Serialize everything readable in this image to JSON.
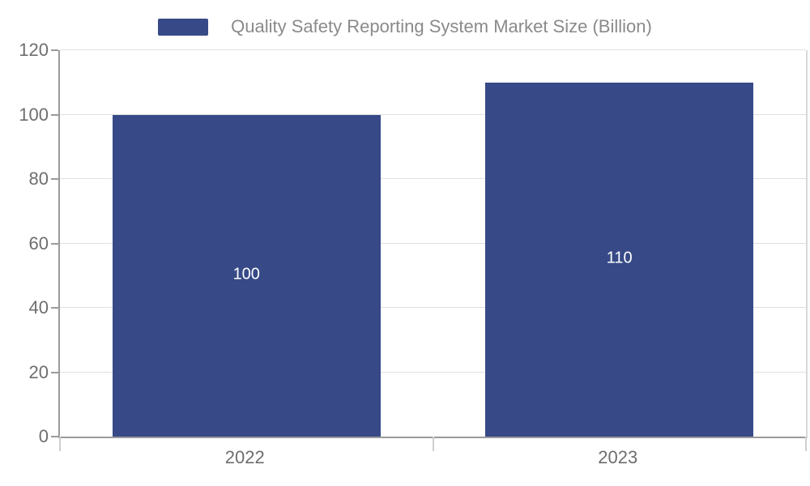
{
  "legend": {
    "label": "Quality Safety Reporting System Market Size (Billion)"
  },
  "chart_data": {
    "type": "bar",
    "title": "Quality Safety Reporting System Market Size (Billion)",
    "xlabel": "",
    "ylabel": "",
    "categories": [
      "2022",
      "2023"
    ],
    "values": [
      100,
      110
    ],
    "data_labels": [
      "100",
      "110"
    ],
    "ylim": [
      0,
      120
    ],
    "yticks": [
      0,
      20,
      40,
      60,
      80,
      100,
      120
    ],
    "grid": true,
    "legend_position": "top",
    "bar_color": "#374A87",
    "data_label_color": "#ffffff",
    "axis_tick_color": "#6E6E6E",
    "legend_text_color": "#8A8A8A",
    "background_color": "#ffffff"
  }
}
